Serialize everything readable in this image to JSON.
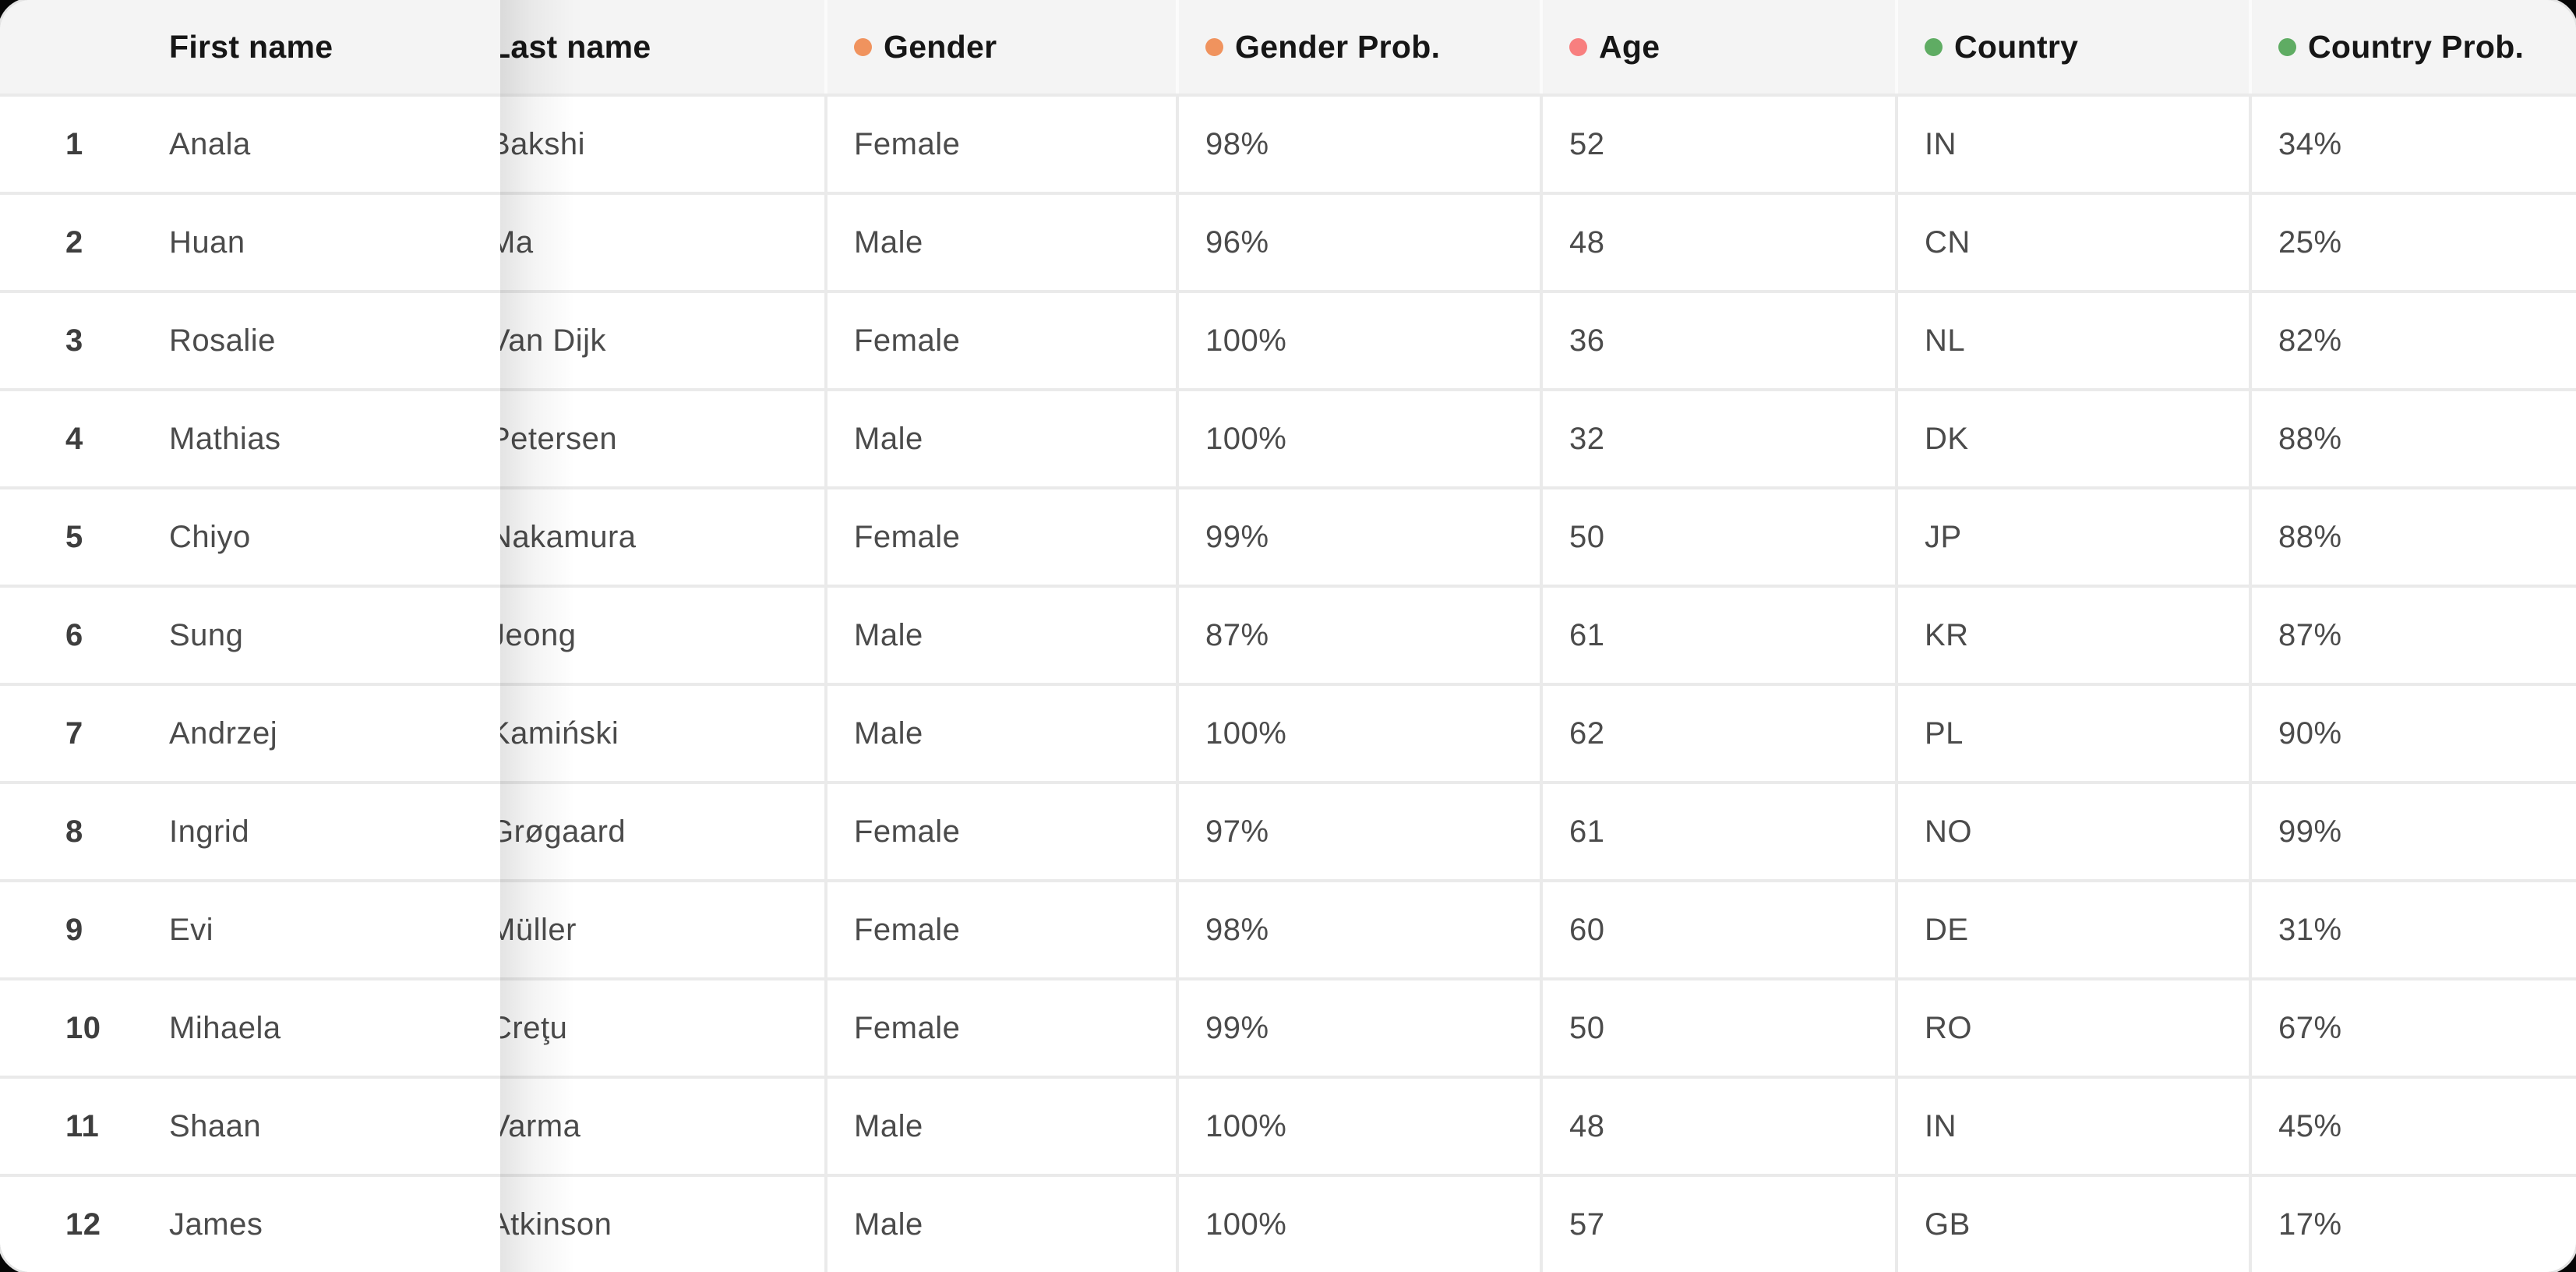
{
  "table": {
    "columns": [
      {
        "key": "index",
        "label": ""
      },
      {
        "key": "first_name",
        "label": "First name"
      },
      {
        "key": "last_name",
        "label": "Last name"
      },
      {
        "key": "gender",
        "label": "Gender",
        "dot": "orange"
      },
      {
        "key": "gender_prob",
        "label": "Gender Prob.",
        "dot": "orange"
      },
      {
        "key": "age",
        "label": "Age",
        "dot": "red"
      },
      {
        "key": "country",
        "label": "Country",
        "dot": "green"
      },
      {
        "key": "country_prob",
        "label": "Country Prob.",
        "dot": "green"
      }
    ],
    "dot_colors": {
      "orange": "#F0935E",
      "red": "#F87F7F",
      "green": "#5FAC63"
    },
    "rows": [
      {
        "index": "1",
        "first_name": "Anala",
        "last_name": "Bakshi",
        "gender": "Female",
        "gender_prob": "98%",
        "age": "52",
        "country": "IN",
        "country_prob": "34%"
      },
      {
        "index": "2",
        "first_name": "Huan",
        "last_name": "Ma",
        "gender": "Male",
        "gender_prob": "96%",
        "age": "48",
        "country": "CN",
        "country_prob": "25%"
      },
      {
        "index": "3",
        "first_name": "Rosalie",
        "last_name": "Van Dijk",
        "gender": "Female",
        "gender_prob": "100%",
        "age": "36",
        "country": "NL",
        "country_prob": "82%"
      },
      {
        "index": "4",
        "first_name": "Mathias",
        "last_name": "Petersen",
        "gender": "Male",
        "gender_prob": "100%",
        "age": "32",
        "country": "DK",
        "country_prob": "88%"
      },
      {
        "index": "5",
        "first_name": "Chiyo",
        "last_name": "Nakamura",
        "gender": "Female",
        "gender_prob": "99%",
        "age": "50",
        "country": "JP",
        "country_prob": "88%"
      },
      {
        "index": "6",
        "first_name": "Sung",
        "last_name": "Jeong",
        "gender": "Male",
        "gender_prob": "87%",
        "age": "61",
        "country": "KR",
        "country_prob": "87%"
      },
      {
        "index": "7",
        "first_name": "Andrzej",
        "last_name": "Kamiński",
        "gender": "Male",
        "gender_prob": "100%",
        "age": "62",
        "country": "PL",
        "country_prob": "90%"
      },
      {
        "index": "8",
        "first_name": "Ingrid",
        "last_name": "Grøgaard",
        "gender": "Female",
        "gender_prob": "97%",
        "age": "61",
        "country": "NO",
        "country_prob": "99%"
      },
      {
        "index": "9",
        "first_name": "Evi",
        "last_name": "Müller",
        "gender": "Female",
        "gender_prob": "98%",
        "age": "60",
        "country": "DE",
        "country_prob": "31%"
      },
      {
        "index": "10",
        "first_name": "Mihaela",
        "last_name": "Creţu",
        "gender": "Female",
        "gender_prob": "99%",
        "age": "50",
        "country": "RO",
        "country_prob": "67%"
      },
      {
        "index": "11",
        "first_name": "Shaan",
        "last_name": "Varma",
        "gender": "Male",
        "gender_prob": "100%",
        "age": "48",
        "country": "IN",
        "country_prob": "45%"
      },
      {
        "index": "12",
        "first_name": "James",
        "last_name": "Atkinson",
        "gender": "Male",
        "gender_prob": "100%",
        "age": "57",
        "country": "GB",
        "country_prob": "17%"
      }
    ]
  }
}
